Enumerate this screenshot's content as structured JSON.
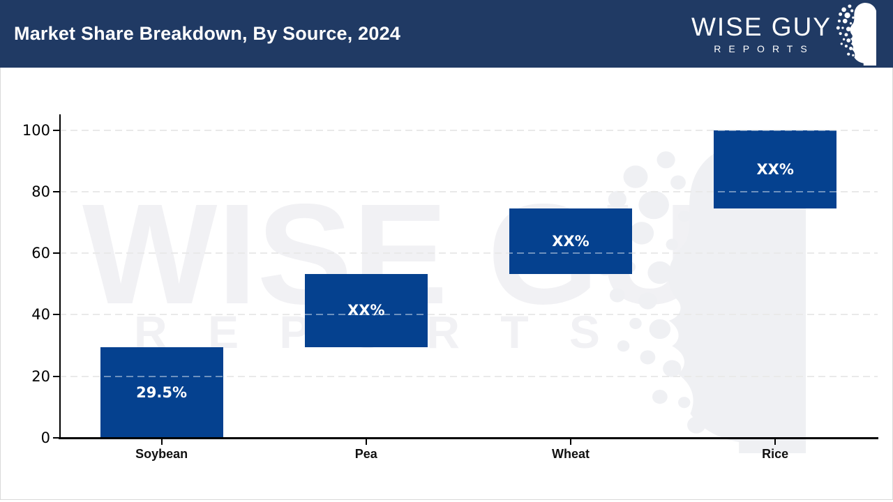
{
  "page": {
    "background": "#ffffff",
    "frame_border_color": "#d9d9d9"
  },
  "header": {
    "bg_color": "#203a64",
    "title": "Market Share Breakdown, By Source, 2024",
    "logo": {
      "line1": "WISE GUY",
      "line2": "REPORTS"
    }
  },
  "watermark": {
    "line1": "WISE GUY",
    "line2": "R E P O R T S"
  },
  "chart_data": {
    "type": "bar",
    "variant": "floating-segment waterfall (cumulative market share)",
    "title": "Market Share Breakdown, By Source, 2024",
    "categories": [
      "Soybean",
      "Pea",
      "Wheat",
      "Rice"
    ],
    "segments": [
      {
        "category": "Soybean",
        "start": 0,
        "end": 29.5,
        "label": "29.5%"
      },
      {
        "category": "Pea",
        "start": 29.5,
        "end": 53.3,
        "label": "XX%"
      },
      {
        "category": "Wheat",
        "start": 53.3,
        "end": 74.5,
        "label": "XX%"
      },
      {
        "category": "Rice",
        "start": 74.5,
        "end": 100,
        "label": "XX%"
      }
    ],
    "xlabel": "",
    "ylabel": "",
    "yticks": [
      0,
      20,
      40,
      60,
      80,
      100
    ],
    "ylim": [
      0,
      105
    ],
    "grid": "horizontal dashed, drawn over bars",
    "legend": "none",
    "bar_color": "#05418f",
    "bar_label_color": "#ffffff",
    "gridline_color": "#d9d9d9",
    "axis_color": "#000000",
    "tick_label_color": "#000000"
  }
}
